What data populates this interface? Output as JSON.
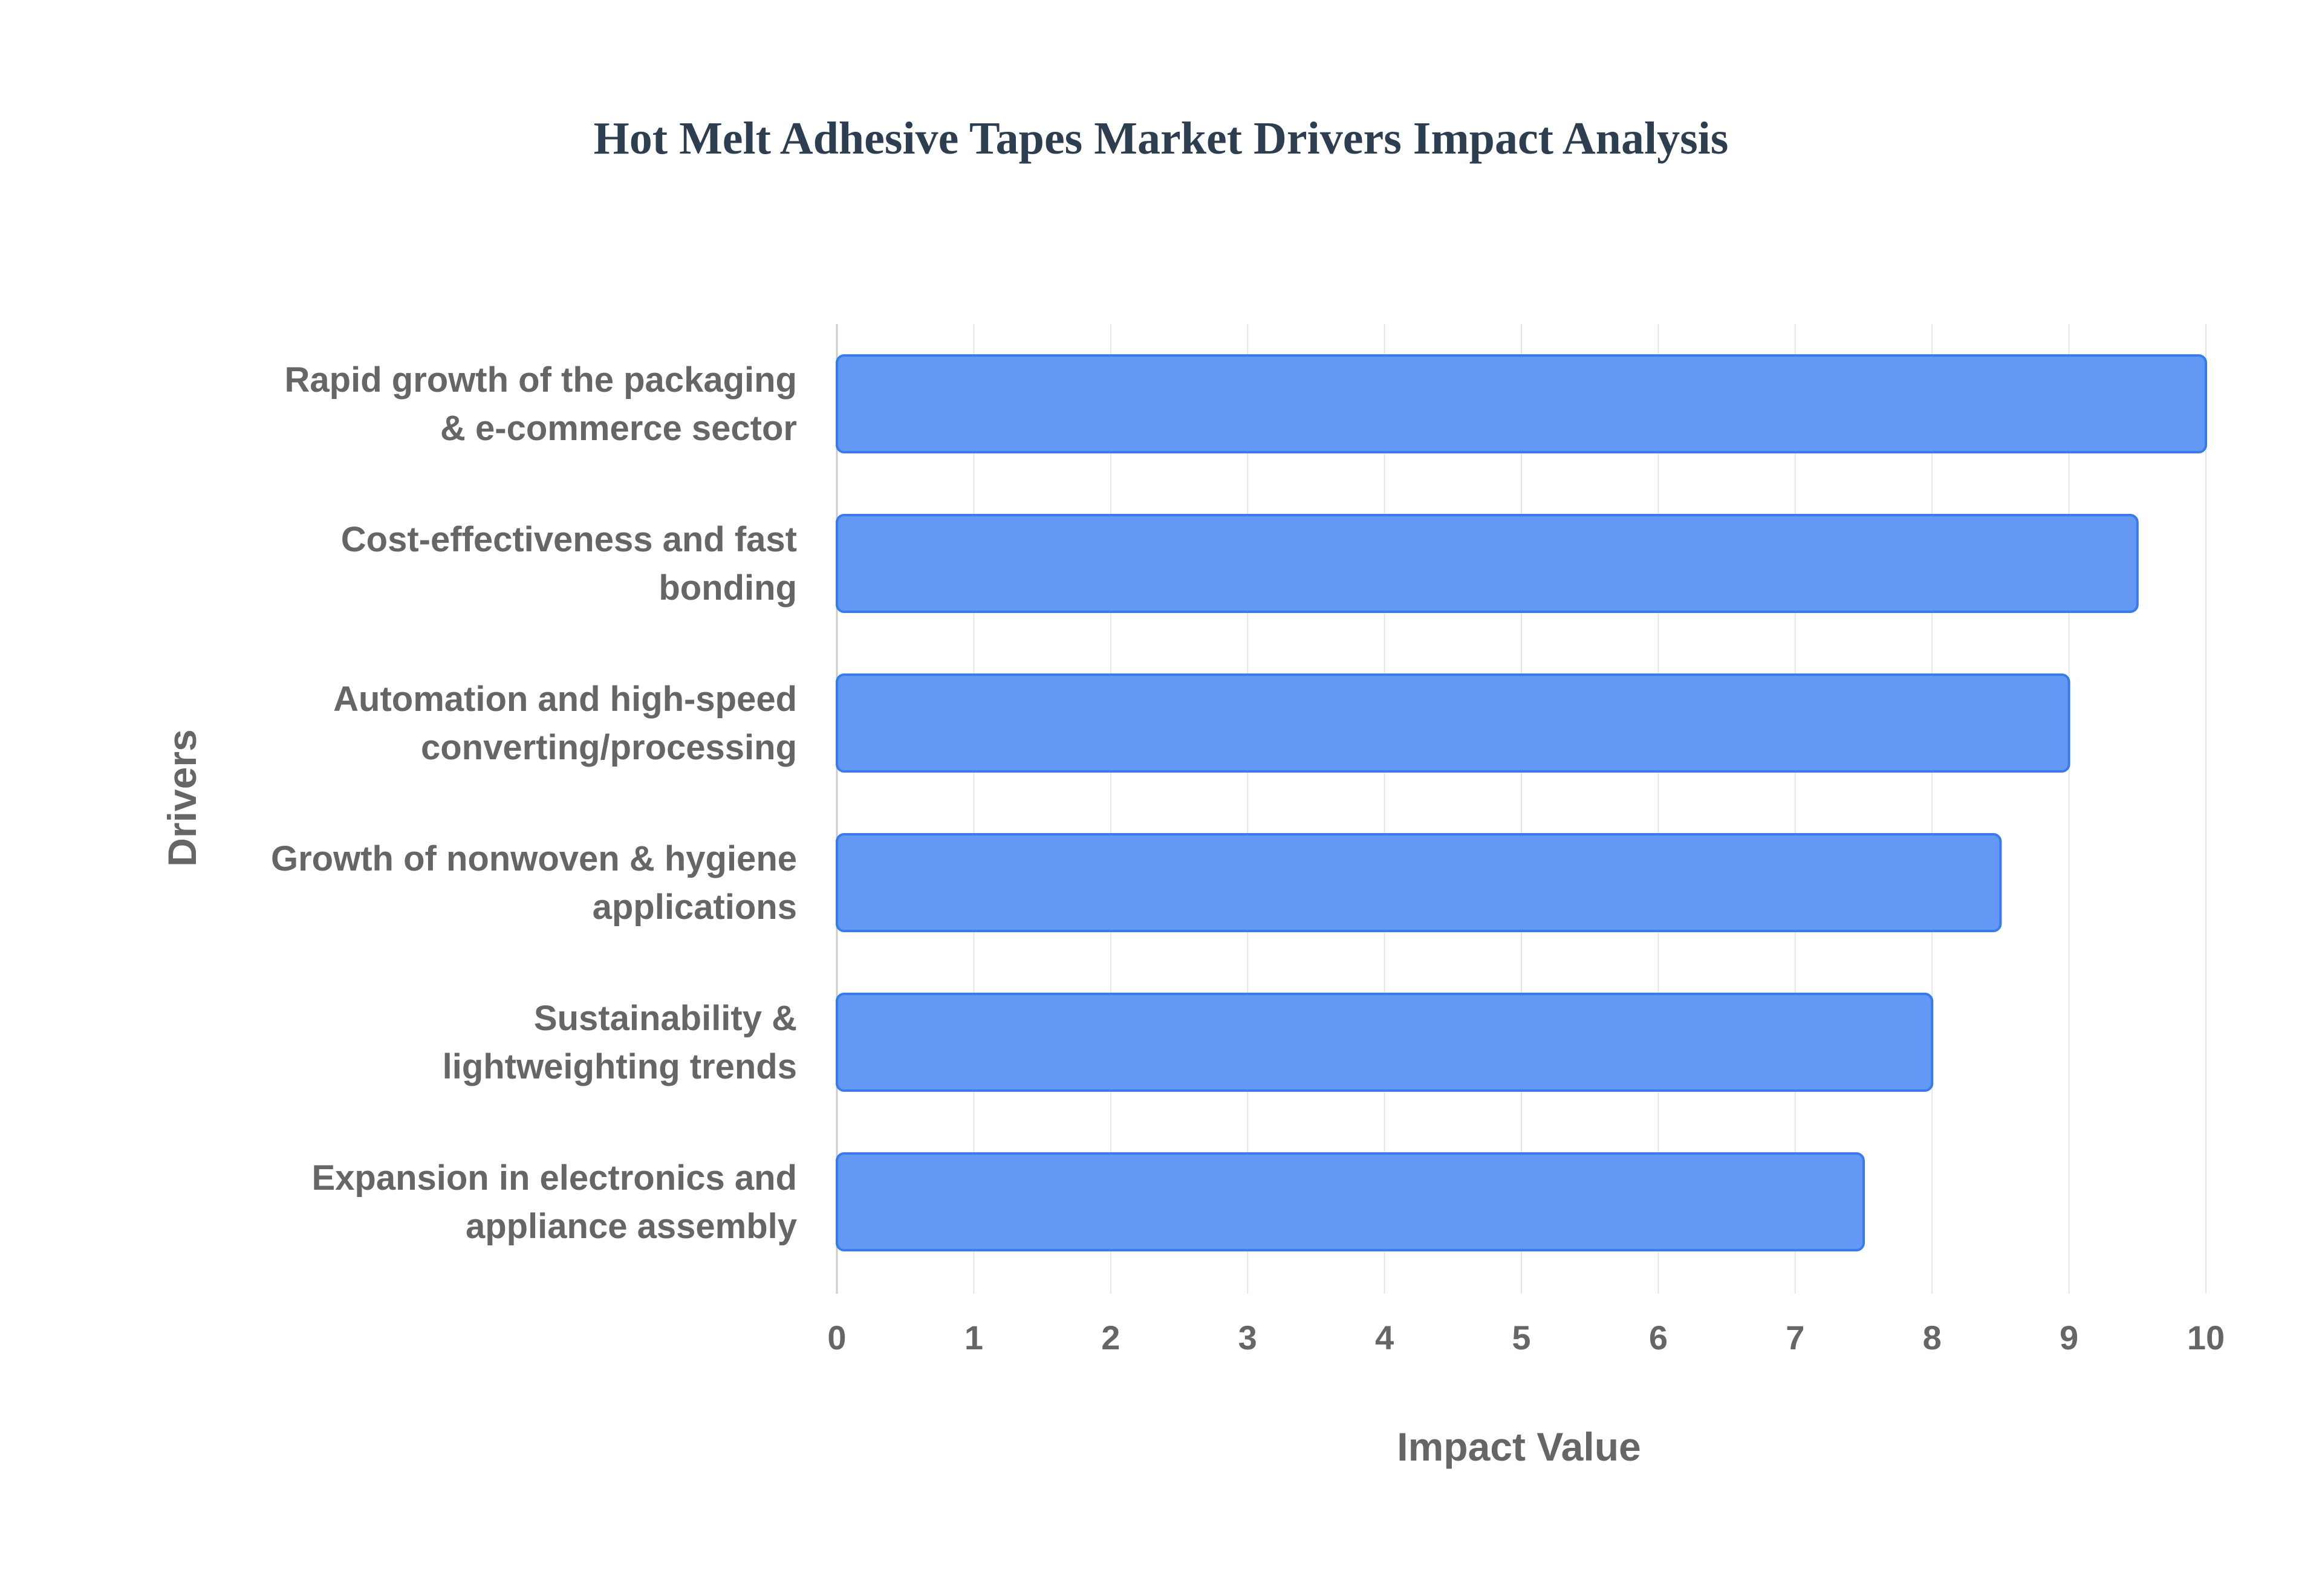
{
  "chart_data": {
    "type": "bar",
    "orientation": "horizontal",
    "title": "Hot Melt Adhesive Tapes Market Drivers Impact Analysis",
    "xlabel": "Impact Value",
    "ylabel": "Drivers",
    "categories": [
      [
        "Rapid growth of the packaging",
        "& e-commerce sector"
      ],
      [
        "Cost-effectiveness and fast",
        "bonding"
      ],
      [
        "Automation and high-speed",
        "converting/processing"
      ],
      [
        "Growth of nonwoven & hygiene",
        "applications"
      ],
      [
        "Sustainability &",
        "lightweighting trends"
      ],
      [
        "Expansion in electronics and",
        "appliance assembly"
      ]
    ],
    "values": [
      10,
      9.5,
      9,
      8.5,
      8,
      7.5
    ],
    "xlim": [
      0,
      10
    ],
    "xticks": [
      "0",
      "1",
      "2",
      "3",
      "4",
      "5",
      "6",
      "7",
      "8",
      "9",
      "10"
    ],
    "grid": true,
    "legend": "none",
    "colors": {
      "bar_fill": "#6399f5",
      "bar_stroke": "#3b7be8",
      "grid": "#e6e6e6",
      "title": "#2c3e50",
      "text": "#666666"
    }
  }
}
